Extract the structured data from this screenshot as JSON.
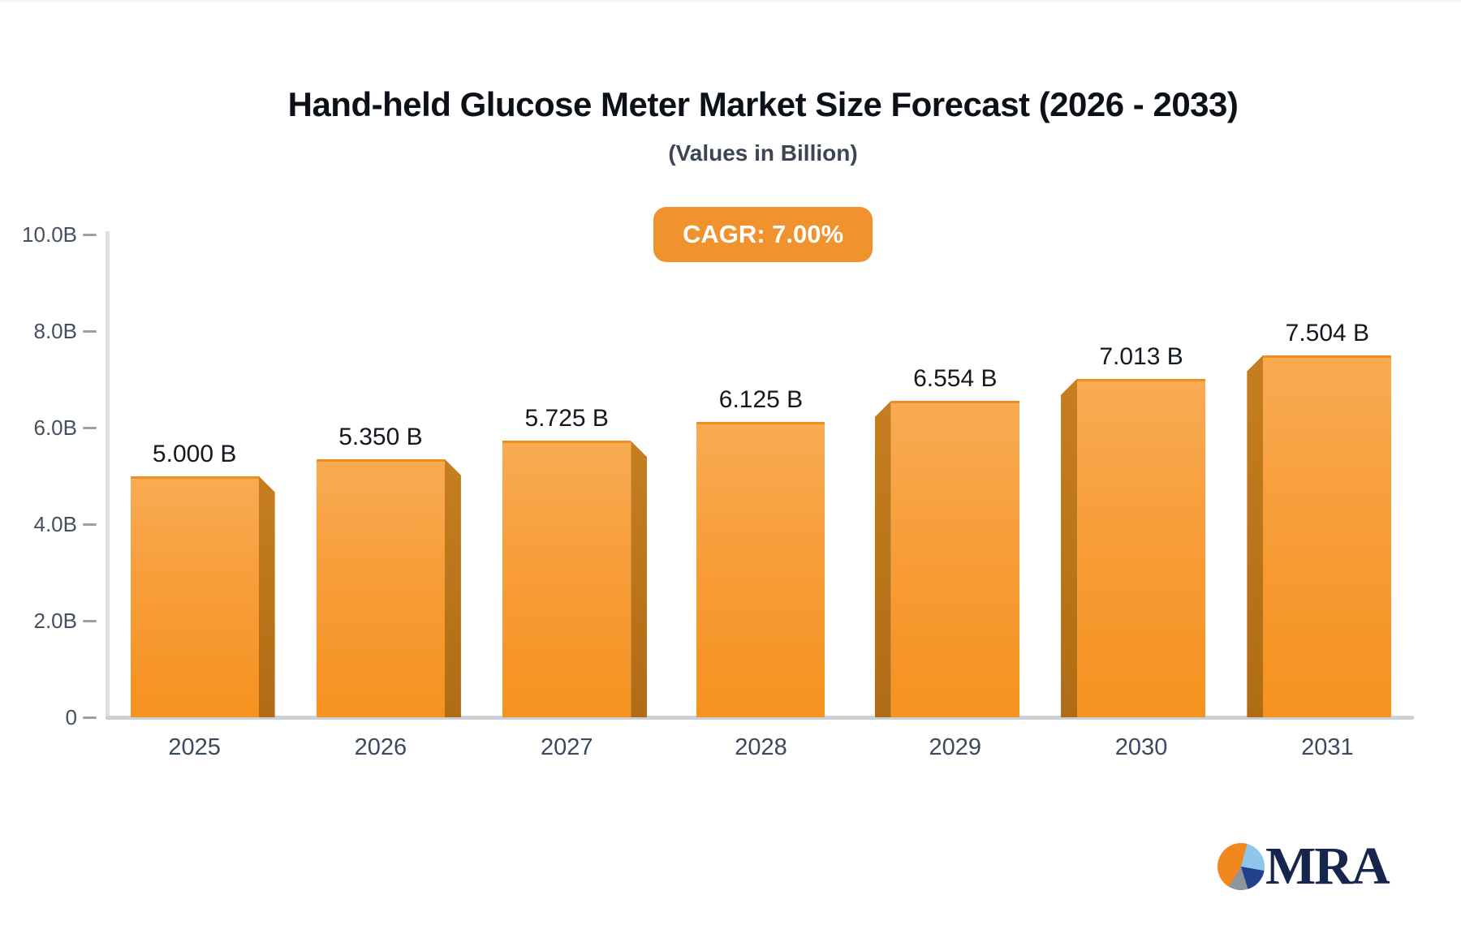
{
  "header": {
    "title": "Hand-held Glucose Meter Market Size Forecast (2026 - 2033)",
    "subtitle": "(Values in Billion)",
    "cagr_badge": "CAGR: 7.00%"
  },
  "chart_data": {
    "type": "bar",
    "title": "Hand-held Glucose Meter Market Size Forecast (2026 - 2033)",
    "subtitle": "(Values in Billion)",
    "unit": "Billion",
    "cagr": "7.00%",
    "categories": [
      "2025",
      "2026",
      "2027",
      "2028",
      "2029",
      "2030",
      "2031"
    ],
    "values": [
      5.0,
      5.35,
      5.725,
      6.125,
      6.554,
      7.013,
      7.504
    ],
    "value_labels": [
      "5.000 B",
      "5.350 B",
      "5.725 B",
      "6.125 B",
      "6.554 B",
      "7.013 B",
      "7.504 B"
    ],
    "ylim": [
      0,
      10
    ],
    "y_ticks": [
      {
        "value": 10,
        "label": "10.0B"
      },
      {
        "value": 8,
        "label": "8.0B"
      },
      {
        "value": 6,
        "label": "6.0B"
      },
      {
        "value": 4,
        "label": "4.0B"
      },
      {
        "value": 2,
        "label": "2.0B"
      },
      {
        "value": 0,
        "label": "0"
      }
    ],
    "grid": false,
    "legend": false,
    "style": "3d-perspective-bars",
    "bar_color_top": "#f9ab53",
    "bar_color_bottom": "#f6921f",
    "bar_side_color": "#b9731a",
    "badge_color": "#f0922e"
  },
  "branding": {
    "logo_text": "MRA",
    "logo_colors": {
      "orange": "#f0881f",
      "light_blue": "#8ec7e9",
      "navy": "#24408d",
      "gray": "#8e959e",
      "text_navy": "#16254c"
    }
  }
}
